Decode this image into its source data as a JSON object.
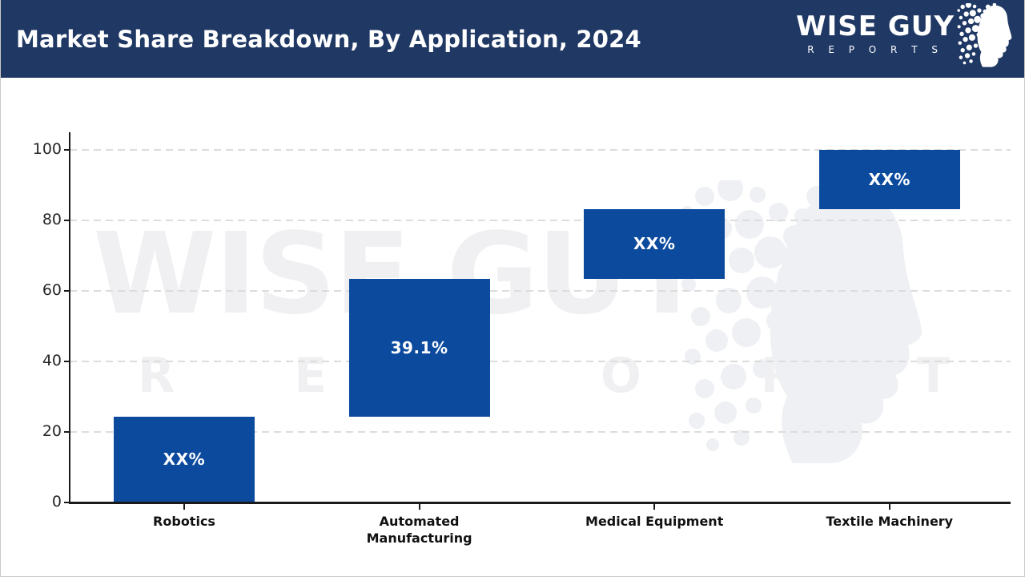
{
  "header": {
    "title": "Market Share Breakdown, By Application, 2024",
    "logo": {
      "line1": "WISE GUY",
      "line2": "R E P O R T S"
    }
  },
  "watermark": {
    "line1": "WISE GUY",
    "line2": "R E P O R T S"
  },
  "colors": {
    "header_navy": "#1f3864",
    "bar_blue": "#0c4a9e",
    "bar_label_white": "#ffffff",
    "gridline_gray": "#dcdcdc",
    "watermark_gray": "#f0f0f2"
  },
  "chart_data": {
    "type": "bar",
    "subtype": "floating-waterfall",
    "title": "Market Share Breakdown, By Application, 2024",
    "xlabel": "",
    "ylabel": "",
    "categories": [
      "Robotics",
      "Automated Manufacturing",
      "Medical Equipment",
      "Textile Machinery"
    ],
    "bars": [
      {
        "category": "Robotics",
        "start": 0,
        "end": 24.4,
        "label": "XX%"
      },
      {
        "category": "Automated Manufacturing",
        "start": 24.4,
        "end": 63.5,
        "label": "39.1%",
        "value": 39.1
      },
      {
        "category": "Medical Equipment",
        "start": 63.5,
        "end": 83.1,
        "label": "XX%"
      },
      {
        "category": "Textile Machinery",
        "start": 83.1,
        "end": 100,
        "label": "XX%"
      }
    ],
    "yticks": [
      0,
      20,
      40,
      60,
      80,
      100
    ],
    "ylim": [
      0,
      105
    ],
    "grid": "dashed-horizontal",
    "legend": "none"
  }
}
